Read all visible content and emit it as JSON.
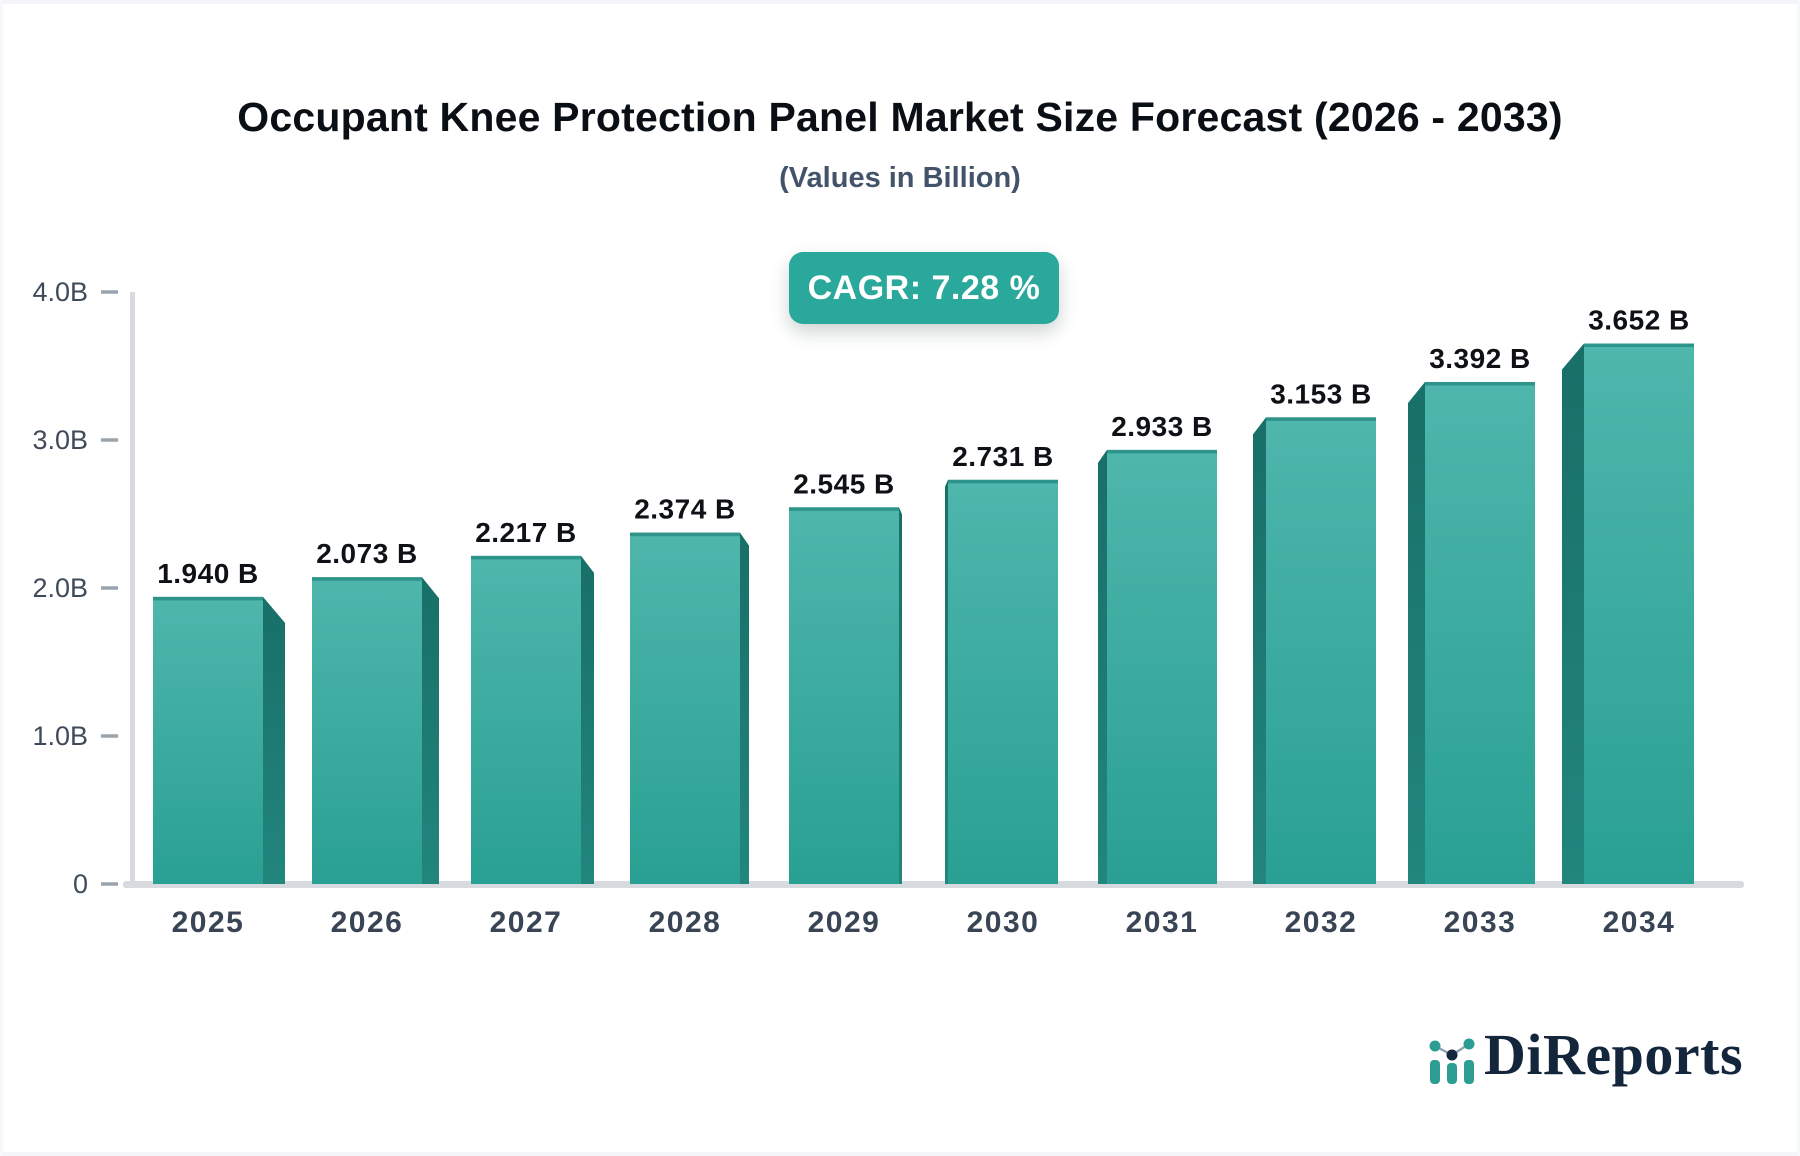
{
  "header": {
    "title": "Occupant Knee Protection Panel Market Size Forecast (2026 - 2033)",
    "subtitle": "(Values in Billion)"
  },
  "badge": {
    "label": "CAGR: 7.28 %",
    "background": "#29A89B",
    "text_color": "#FFFFFF"
  },
  "chart_data": {
    "type": "bar",
    "title": "Occupant Knee Protection Panel Market Size Forecast (2026 - 2033)",
    "subtitle": "(Values in Billion)",
    "xlabel": "",
    "ylabel": "",
    "categories": [
      "2025",
      "2026",
      "2027",
      "2028",
      "2029",
      "2030",
      "2031",
      "2032",
      "2033",
      "2034"
    ],
    "values": [
      1.94,
      2.073,
      2.217,
      2.374,
      2.545,
      2.731,
      2.933,
      3.153,
      3.392,
      3.652
    ],
    "value_labels": [
      "1.940 B",
      "2.073 B",
      "2.217 B",
      "2.374 B",
      "2.545 B",
      "2.731 B",
      "2.933 B",
      "3.153 B",
      "3.392 B",
      "3.652 B"
    ],
    "y_ticks": [
      {
        "label": "0",
        "value": 0
      },
      {
        "label": "1.0B",
        "value": 1.0
      },
      {
        "label": "2.0B",
        "value": 2.0
      },
      {
        "label": "3.0B",
        "value": 3.0
      },
      {
        "label": "4.0B",
        "value": 4.0
      }
    ],
    "ylim": [
      0,
      4.0
    ],
    "grid": false,
    "legend": "none",
    "style_3d": "center-perspective extruded bars",
    "colors": {
      "bar_top": "#4FB6AC",
      "bar_bottom": "#29A093",
      "bar_top_edge": "#2E938A",
      "bar_side_dark": "#186F68",
      "bar_side_light": "#22867D",
      "axis_line": "#D7DADE",
      "tick_dash": "#9AA3AE",
      "tick_label": "#3F4B5B",
      "year_label": "#394554",
      "value_label": "#0E1217"
    }
  },
  "branding": {
    "logo_text": "DiReports",
    "logo_icon": "mini-bar-chart-with-trend-dots",
    "logo_bar_color": "#2D9D93",
    "logo_dot_dark": "#16283E",
    "logo_text_color": "#14263C"
  }
}
